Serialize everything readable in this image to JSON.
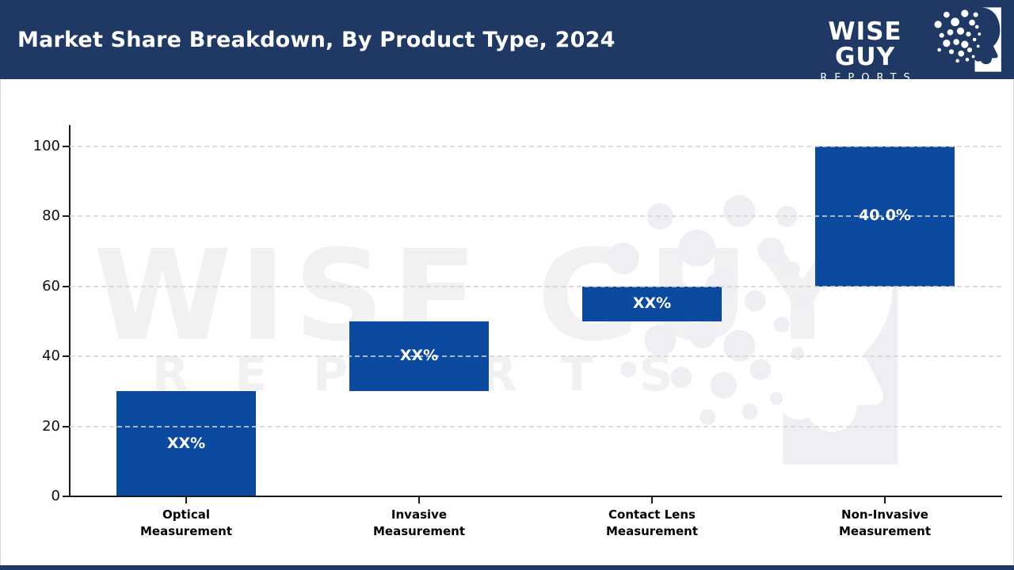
{
  "header": {
    "title": "Market Share Breakdown, By Product Type, 2024",
    "bg_color": "#1F3864",
    "logo": {
      "line1": "WISE GUY",
      "line2": "REPORTS"
    }
  },
  "watermark": {
    "line1": "WISE GUY",
    "line2": "REPORTS"
  },
  "chart_data": {
    "type": "bar",
    "subtype": "waterfall",
    "title": "Market Share Breakdown, By Product Type, 2024",
    "categories": [
      "Optical\nMeasurement",
      "Invasive\nMeasurement",
      "Contact Lens\nMeasurement",
      "Non-Invasive\nMeasurement"
    ],
    "values": [
      30,
      20,
      10,
      40
    ],
    "segments": [
      {
        "category": "Optical\nMeasurement",
        "start": 0,
        "end": 30,
        "label": "XX%"
      },
      {
        "category": "Invasive\nMeasurement",
        "start": 30,
        "end": 50,
        "label": "XX%"
      },
      {
        "category": "Contact Lens\nMeasurement",
        "start": 50,
        "end": 60,
        "label": "XX%"
      },
      {
        "category": "Non-Invasive\nMeasurement",
        "start": 60,
        "end": 100,
        "label": "40.0%"
      }
    ],
    "xlabel": "",
    "ylabel": "",
    "yticks": [
      0,
      20,
      40,
      60,
      80,
      100
    ],
    "ylim": [
      0,
      106
    ],
    "grid": "horizontal-dashed",
    "legend": "none",
    "bar_color": "#0B4A9E",
    "bar_label_color": "#FFFFFF",
    "axis_color": "#1a1a1a",
    "gridline_color": "#d4d4d4"
  }
}
